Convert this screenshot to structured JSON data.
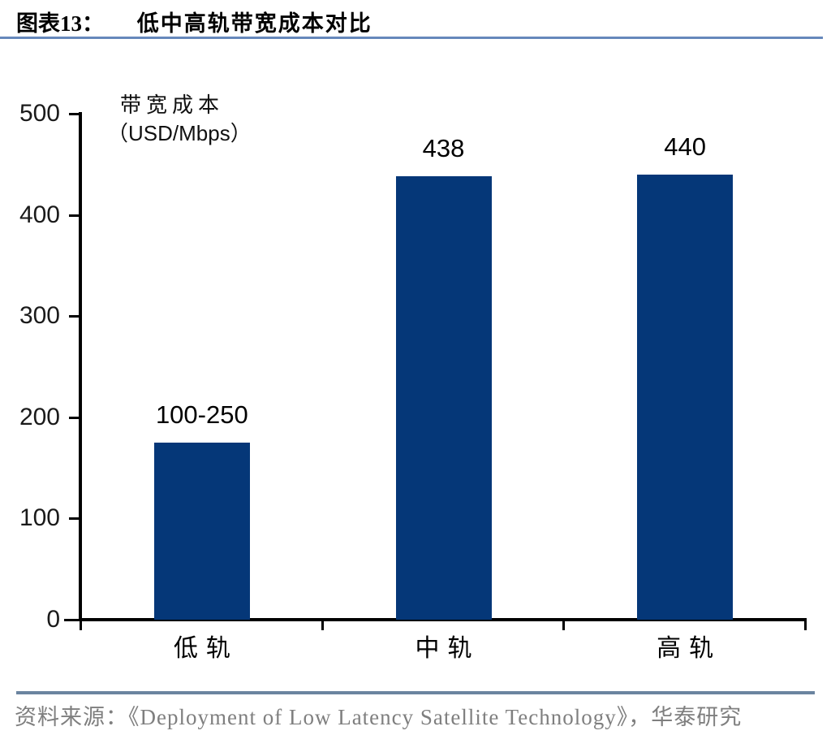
{
  "header": {
    "label": "图表13：",
    "title": "低中高轨带宽成本对比"
  },
  "chart_data": {
    "type": "bar",
    "title": "低中高轨带宽成本对比",
    "categories": [
      "低轨",
      "中轨",
      "高轨"
    ],
    "values": [
      "100-250",
      "438",
      "440"
    ],
    "plotted_heights": [
      175,
      438,
      440
    ],
    "ylabel_lines": [
      "带宽成本",
      "（USD/Mbps）"
    ],
    "ylim": [
      0,
      500
    ],
    "yticks": [
      0,
      100,
      200,
      300,
      400,
      500
    ],
    "grid": false,
    "legend": false,
    "bar_color": "#053778"
  },
  "footer": {
    "source": "资料来源：《Deployment of Low Latency Satellite Technology》，华泰研究"
  },
  "colors": {
    "bar": "#053778",
    "title_underline": "#6688bb",
    "footer_divider": "#6b84a0",
    "source_text": "#7f7f7f",
    "axis": "#000000"
  }
}
